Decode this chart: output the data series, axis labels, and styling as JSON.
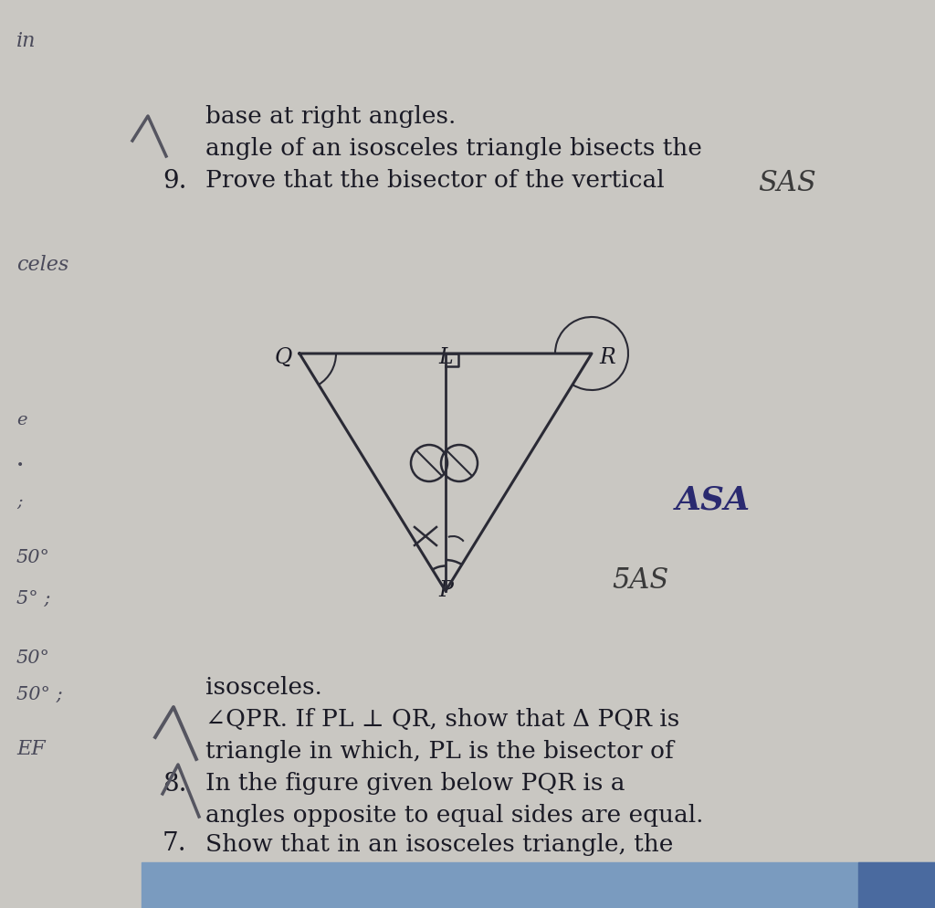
{
  "bg_color": "#c9c7c2",
  "blue_bar_color": "#7a9bbf",
  "blue_bar_right": "#4a6a9f",
  "text_color": "#2a2a35",
  "dark_text": "#1a1a25",
  "title_number": "7.",
  "title_line1": "Show that in an isosceles triangle, the",
  "title_line2": "angles opposite to equal sides are equal.",
  "q8_number": "8.",
  "q8_line1": "In the figure given below PQR is a",
  "q8_line2": "triangle in which, PL is the bisector of",
  "q8_line3": "∠QPR. If PL ⊥ QR, show that Δ PQR is",
  "q8_line4": "isosceles.",
  "q9_number": "9.",
  "q9_line1": "Prove that the bisector of the vertical",
  "q9_line2": "angle of an isosceles triangle bisects the",
  "q9_line3": "base at right angles.",
  "sas_handwritten": "5AS",
  "asa_handwritten": "ASA",
  "sas9_handwritten": "SAS",
  "left_ef": "EF",
  "left_50a": "50° ;",
  "left_50b": "50°",
  "left_5": "5° ;",
  "left_50c": "50°",
  "left_semicolon": ";",
  "left_dot": "•",
  "left_e": "e",
  "left_celes": "celes",
  "left_in": "in",
  "font_main": 19,
  "font_label": 15,
  "font_hand": 21
}
